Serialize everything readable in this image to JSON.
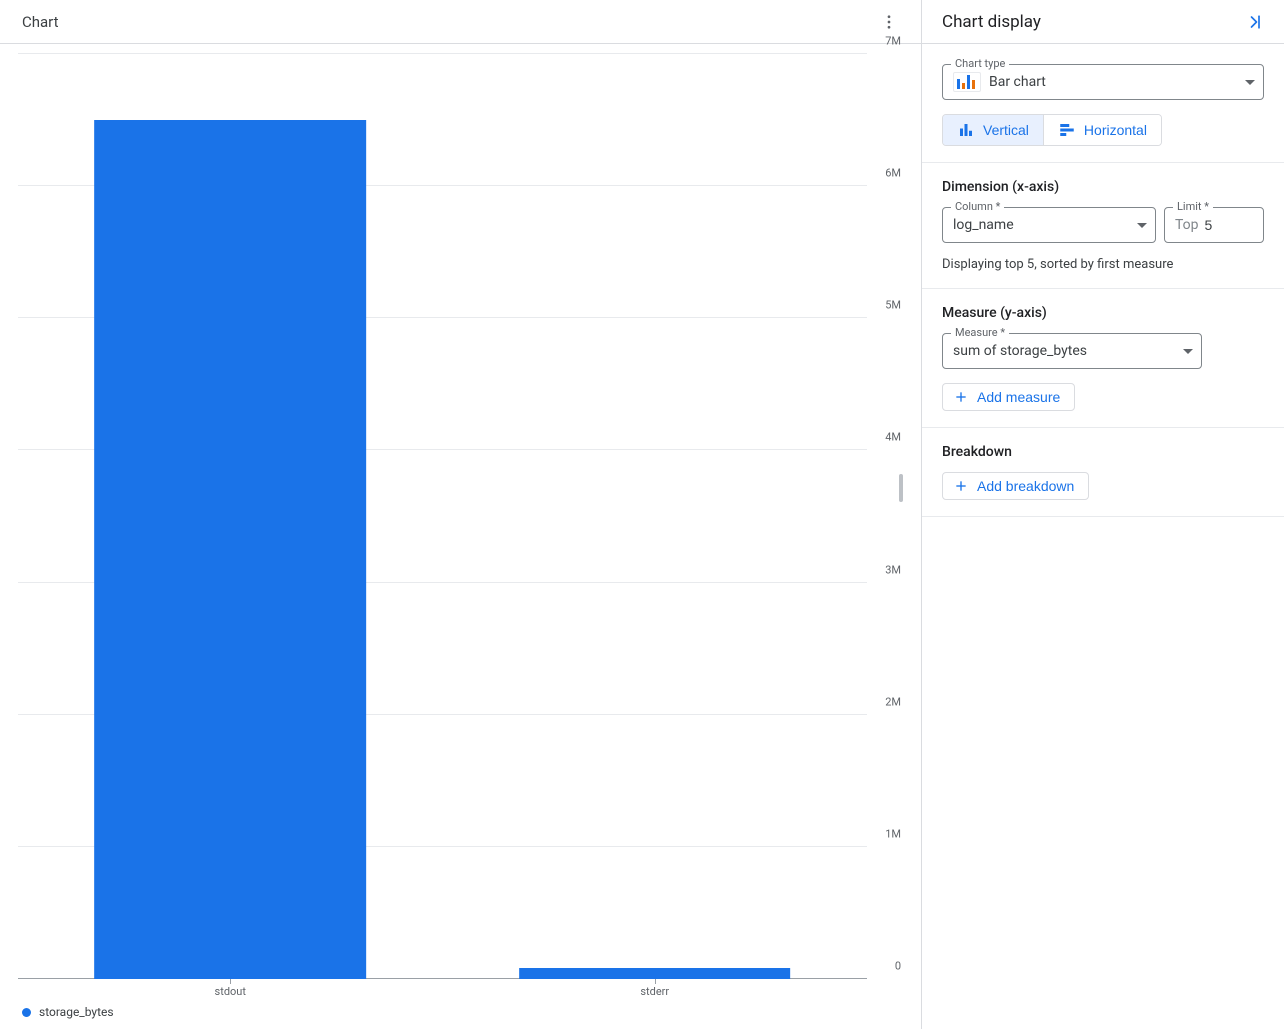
{
  "chart_panel": {
    "title": "Chart",
    "chart": {
      "type": "bar",
      "orientation": "vertical",
      "categories": [
        "stdout",
        "stderr"
      ],
      "values": [
        6500000,
        85000
      ],
      "bar_color": "#1a73e8",
      "bar_width_pct": 32,
      "background_color": "#ffffff",
      "grid_color": "#e8eaed",
      "axis_color": "#9aa0a6",
      "ylim": [
        0,
        7000000
      ],
      "yticks": [
        0,
        1000000,
        2000000,
        3000000,
        4000000,
        5000000,
        6000000,
        7000000
      ],
      "ytick_labels": [
        "0",
        "1M",
        "2M",
        "3M",
        "4M",
        "5M",
        "6M",
        "7M"
      ],
      "ytick_label_color": "#5f6368",
      "ytick_label_fontsize": 11,
      "xtick_label_color": "#5f6368",
      "xtick_label_fontsize": 11,
      "y_labels_side": "right"
    },
    "legend": {
      "items": [
        {
          "label": "storage_bytes",
          "color": "#1a73e8"
        }
      ]
    }
  },
  "sidebar": {
    "title": "Chart display",
    "chart_type": {
      "float_label": "Chart type",
      "value": "Bar chart",
      "icon_colors": [
        "#1a73e8",
        "#e8710a",
        "#1a73e8",
        "#e8710a"
      ],
      "icon_heights": [
        10,
        6,
        14,
        9
      ]
    },
    "orientation": {
      "options": [
        "Vertical",
        "Horizontal"
      ],
      "selected": "Vertical"
    },
    "dimension": {
      "title": "Dimension (x-axis)",
      "column_label": "Column *",
      "column_value": "log_name",
      "limit_label": "Limit *",
      "limit_placeholder": "Top",
      "limit_value": "5",
      "hint": "Displaying top 5, sorted by first measure"
    },
    "measure": {
      "title": "Measure (y-axis)",
      "select_label": "Measure *",
      "select_value": "sum of storage_bytes",
      "add_label": "Add measure"
    },
    "breakdown": {
      "title": "Breakdown",
      "add_label": "Add breakdown"
    }
  }
}
